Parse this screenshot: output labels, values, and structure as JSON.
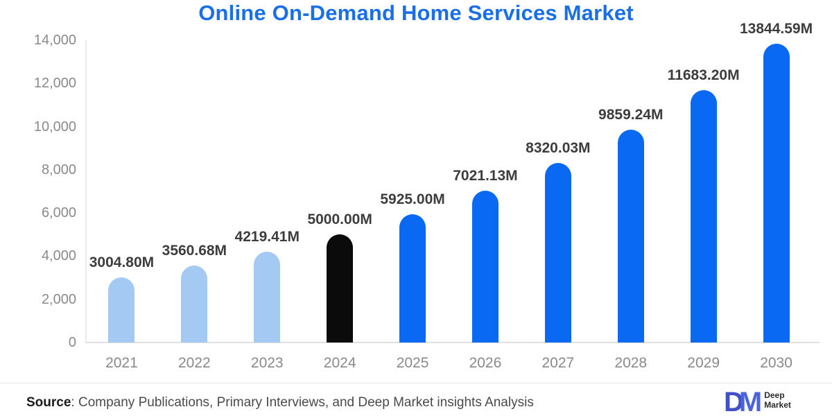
{
  "header": {
    "title": "Online On-Demand Home Services Market",
    "title_color": "#1A6FE8"
  },
  "chart_data": {
    "type": "bar",
    "title": "Online On-Demand Home Services Market",
    "categories": [
      "2021",
      "2022",
      "2023",
      "2024",
      "2025",
      "2026",
      "2027",
      "2028",
      "2029",
      "2030"
    ],
    "values": [
      3004.8,
      3560.68,
      4219.41,
      5000.0,
      5925.0,
      7021.13,
      8320.03,
      9859.24,
      11683.2,
      13844.59
    ],
    "value_labels": [
      "3004.80M",
      "3560.68M",
      "4219.41M",
      "5000.00M",
      "5925.00M",
      "7021.13M",
      "8320.03M",
      "9859.24M",
      "11683.20M",
      "13844.59M"
    ],
    "bar_colors": [
      "#A4CAF4",
      "#A4CAF4",
      "#A4CAF4",
      "#0B0B0B",
      "#0A69F2",
      "#0A69F2",
      "#0A69F2",
      "#0A69F2",
      "#0A69F2",
      "#0A69F2"
    ],
    "unit": "M",
    "xlabel": "",
    "ylabel": "",
    "ylim": [
      0,
      14000
    ],
    "yticks": [
      {
        "value": 0,
        "label": "0"
      },
      {
        "value": 2000,
        "label": "2,000"
      },
      {
        "value": 4000,
        "label": "4,000"
      },
      {
        "value": 6000,
        "label": "6,000"
      },
      {
        "value": 8000,
        "label": "8,000"
      },
      {
        "value": 10000,
        "label": "10,000"
      },
      {
        "value": 12000,
        "label": "12,000"
      },
      {
        "value": 14000,
        "label": "14,000"
      }
    ],
    "grid": false,
    "legend": false
  },
  "colors": {
    "axis_line_y": "#EBEBEB",
    "axis_line_x": "#E0E0E0",
    "tick_text": "#8A8A8A",
    "value_text": "#3D3D3D"
  },
  "footer": {
    "source_label": "Source",
    "source_text": ": Company Publications, Primary Interviews, and Deep Market insights Analysis"
  },
  "logo": {
    "mark_d": "D",
    "mark_m": "M",
    "mark_color_d": "#4150C8",
    "mark_color_m": "#4B64DB",
    "name_line1": "Deep",
    "name_line2": "Market"
  }
}
